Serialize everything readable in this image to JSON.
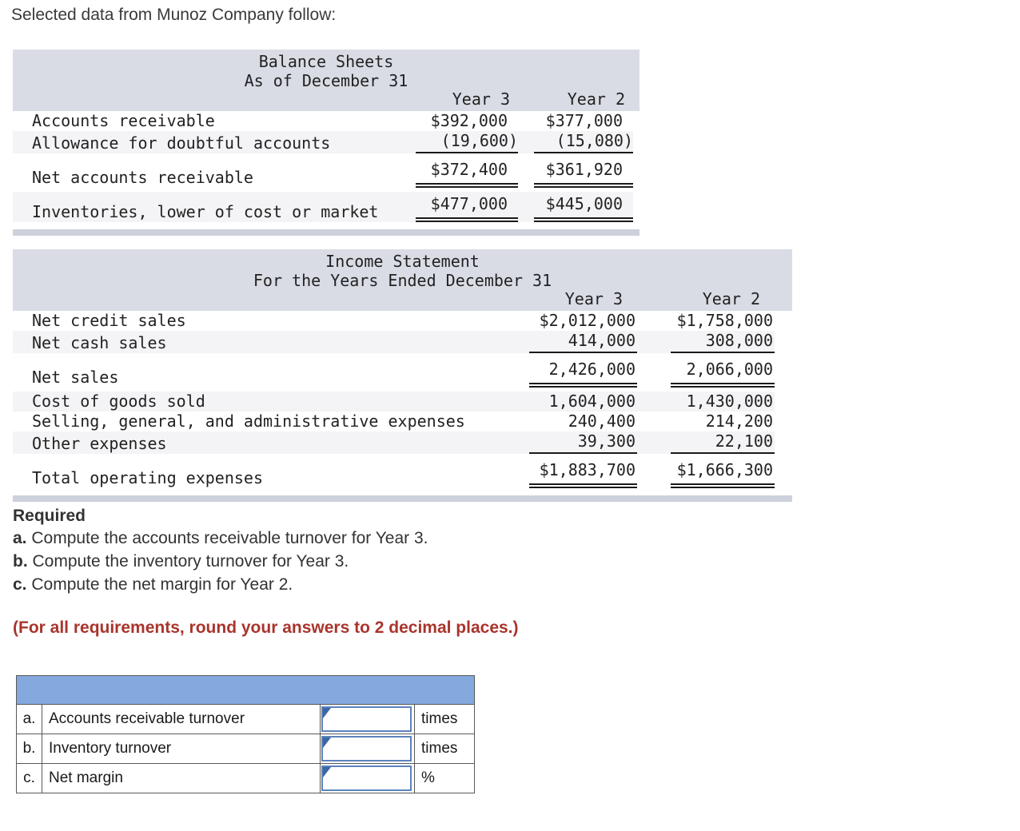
{
  "page": {
    "title": "Selected data from Munoz Company follow:"
  },
  "balance_sheet": {
    "title": "Balance Sheets",
    "subtitle": "As of December 31",
    "col_headers": [
      "Year 3",
      "Year 2"
    ],
    "rows": [
      {
        "label": "Accounts receivable",
        "year3": "$392,000",
        "year2": "$377,000"
      },
      {
        "label": "Allowance for doubtful accounts",
        "year3": "(19,600)",
        "year2": "(15,080)"
      },
      {
        "label": "Net accounts receivable",
        "year3": "$372,400",
        "year2": "$361,920"
      },
      {
        "label": "Inventories, lower of cost or market",
        "year3": "$477,000",
        "year2": "$445,000"
      }
    ]
  },
  "income_statement": {
    "title": "Income Statement",
    "subtitle": "For the Years Ended December 31",
    "col_headers": [
      "Year 3",
      "Year 2"
    ],
    "rows": [
      {
        "label": "Net credit sales",
        "year3": "$2,012,000",
        "year2": "$1,758,000"
      },
      {
        "label": "Net cash sales",
        "year3": "414,000",
        "year2": "308,000"
      },
      {
        "label": "Net sales",
        "year3": "2,426,000",
        "year2": "2,066,000"
      },
      {
        "label": "Cost of goods sold",
        "year3": "1,604,000",
        "year2": "1,430,000"
      },
      {
        "label": "Selling, general, and administrative expenses",
        "year3": "240,400",
        "year2": "214,200"
      },
      {
        "label": "Other expenses",
        "year3": "39,300",
        "year2": "22,100"
      },
      {
        "label": "Total operating expenses",
        "year3": "$1,883,700",
        "year2": "$1,666,300"
      }
    ]
  },
  "required": {
    "heading": "Required",
    "items": [
      {
        "letter": "a.",
        "text": " Compute the accounts receivable turnover for Year 3."
      },
      {
        "letter": "b.",
        "text": " Compute the inventory turnover for Year 3."
      },
      {
        "letter": "c.",
        "text": " Compute the net margin for Year 2."
      }
    ],
    "note": "(For all requirements, round your answers to 2 decimal places.)"
  },
  "answer_table": {
    "rows": [
      {
        "letter": "a.",
        "label": "Accounts receivable turnover",
        "value": "",
        "unit": "times"
      },
      {
        "letter": "b.",
        "label": "Inventory turnover",
        "value": "",
        "unit": "times"
      },
      {
        "letter": "c.",
        "label": "Net margin",
        "value": "",
        "unit": "%"
      }
    ]
  },
  "colors": {
    "table_header_band": "#d9dce5",
    "alt_row": "#f4f4f6",
    "bottom_bar": "#cdd1db",
    "answer_header_blue": "#83a9de",
    "input_border_blue": "#5b83bc",
    "input_flag_blue": "#3a67a8",
    "note_red": "#a9342c"
  }
}
